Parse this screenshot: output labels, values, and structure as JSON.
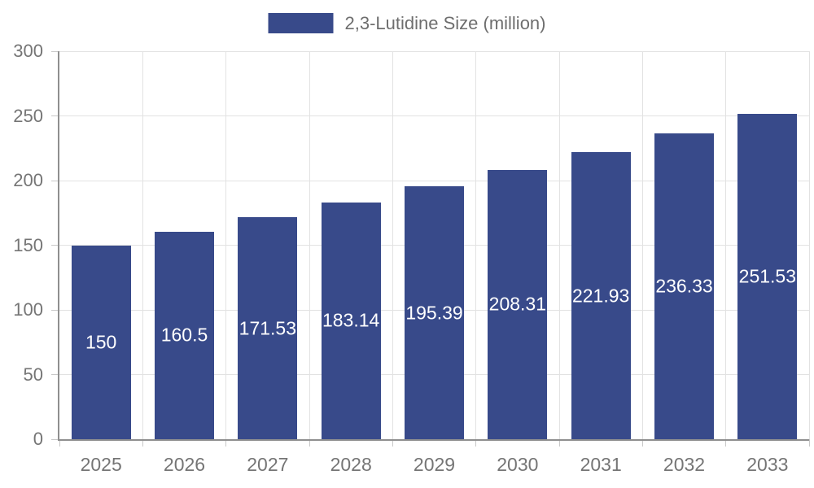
{
  "chart_data": {
    "type": "bar",
    "title": "",
    "legend": {
      "label": "2,3-Lutidine Size (million)",
      "position": "top"
    },
    "categories": [
      "2025",
      "2026",
      "2027",
      "2028",
      "2029",
      "2030",
      "2031",
      "2032",
      "2033"
    ],
    "series": [
      {
        "name": "2,3-Lutidine Size (million)",
        "values": [
          150,
          160.5,
          171.53,
          183.14,
          195.39,
          208.31,
          221.93,
          236.33,
          251.53
        ],
        "data_labels": [
          "150",
          "160.5",
          "171.53",
          "183.14",
          "195.39",
          "208.31",
          "221.93",
          "236.33",
          "251.53"
        ]
      }
    ],
    "xlabel": "",
    "ylabel": "",
    "ylim": [
      0,
      300
    ],
    "yticks": [
      0,
      50,
      100,
      150,
      200,
      250,
      300
    ],
    "grid": true,
    "legend_position": "top-center",
    "colors": {
      "bar": "#384A8A",
      "bar_label_text": "#ffffff",
      "axis_text": "#757575",
      "legend_text": "#6e6e6e",
      "grid_line": "#e2e2e2",
      "axis_line": "#8f8f8f",
      "tick_line": "#c8c8c8",
      "background": "#ffffff"
    }
  }
}
